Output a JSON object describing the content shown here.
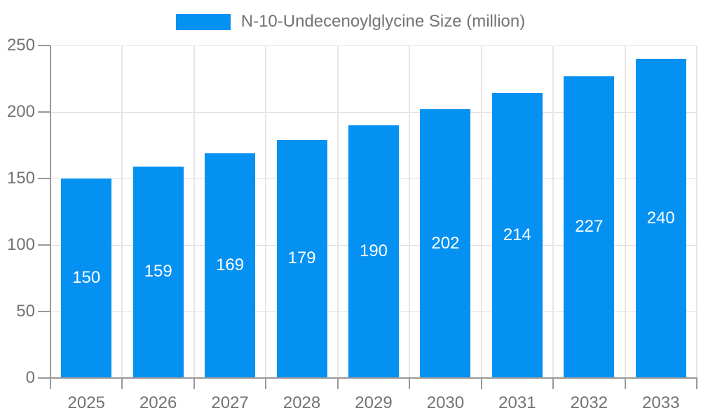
{
  "legend": {
    "label": "N-10-Undecenoylglycine Size (million)"
  },
  "chart_data": {
    "type": "bar",
    "title": "N-10-Undecenoylglycine Size (million)",
    "categories": [
      "2025",
      "2026",
      "2027",
      "2028",
      "2029",
      "2030",
      "2031",
      "2032",
      "2033"
    ],
    "values": [
      150,
      159,
      169,
      179,
      190,
      202,
      214,
      227,
      240
    ],
    "xlabel": "",
    "ylabel": "",
    "ylim": [
      0,
      250
    ],
    "yticks": [
      0,
      50,
      100,
      150,
      200,
      250
    ],
    "grid": true,
    "legend_position": "top-center",
    "value_labels": "inside-center",
    "colors": {
      "bar": "#0591F2",
      "axis": "#999999",
      "grid_h": "#dfdfdf",
      "grid_v": "#e6e6e6",
      "tick_text": "#737373",
      "value_text": "#ffffff",
      "background": "#ffffff"
    }
  }
}
